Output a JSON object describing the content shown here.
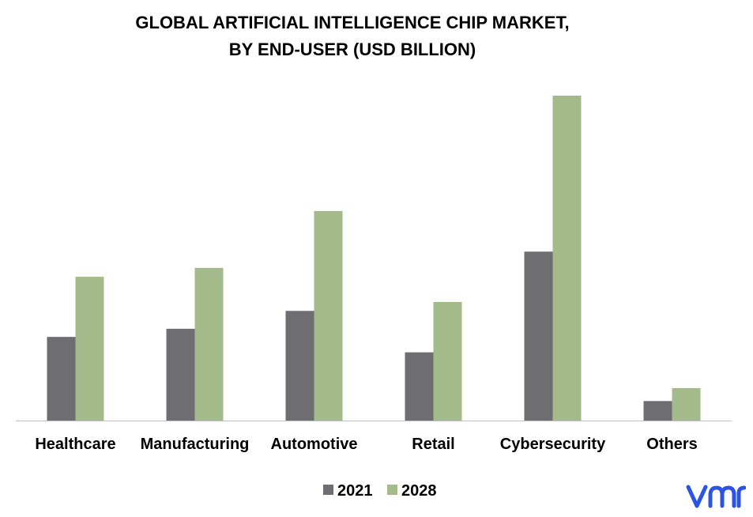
{
  "chart_data": {
    "type": "bar",
    "title_line1": "GLOBAL ARTIFICIAL INTELLIGENCE CHIP MARKET,",
    "title_line2": "BY END-USER (USD BILLION)",
    "categories": [
      "Healthcare",
      "Manufacturing",
      "Automotive",
      "Retail",
      "Cybersecurity",
      "Others"
    ],
    "series": [
      {
        "name": "2021",
        "color": "#6d6d72",
        "values": [
          10.3,
          11.3,
          13.5,
          8.4,
          20.8,
          2.4
        ]
      },
      {
        "name": "2028",
        "color": "#a3bb8a",
        "values": [
          17.7,
          18.8,
          25.8,
          14.6,
          40.0,
          4.0
        ]
      }
    ],
    "ylim": [
      0,
      40
    ],
    "grid": false,
    "legend_position": "bottom"
  },
  "logo": {
    "text": "vmr",
    "color": "#2b54e6"
  }
}
